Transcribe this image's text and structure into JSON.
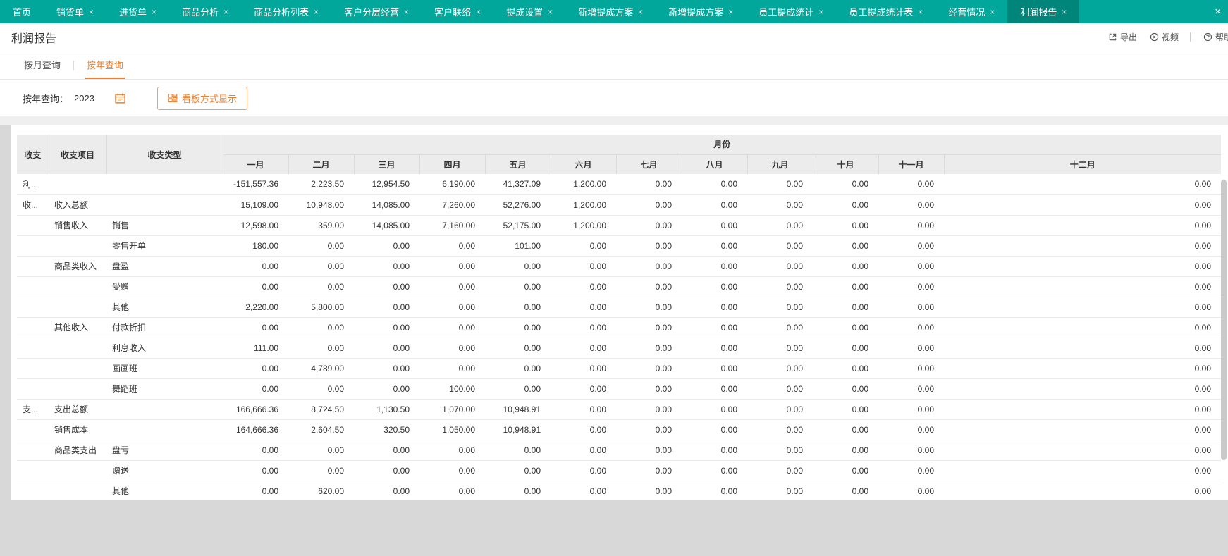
{
  "tab_bar": {
    "close_all": "×",
    "tabs": [
      {
        "label": "首页",
        "closable": false,
        "active": false
      },
      {
        "label": "销货单",
        "closable": true,
        "active": false
      },
      {
        "label": "进货单",
        "closable": true,
        "active": false
      },
      {
        "label": "商品分析",
        "closable": true,
        "active": false
      },
      {
        "label": "商品分析列表",
        "closable": true,
        "active": false
      },
      {
        "label": "客户分层经营",
        "closable": true,
        "active": false
      },
      {
        "label": "客户联络",
        "closable": true,
        "active": false
      },
      {
        "label": "提成设置",
        "closable": true,
        "active": false
      },
      {
        "label": "新增提成方案",
        "closable": true,
        "active": false
      },
      {
        "label": "新增提成方案",
        "closable": true,
        "active": false
      },
      {
        "label": "员工提成统计",
        "closable": true,
        "active": false
      },
      {
        "label": "员工提成统计表",
        "closable": true,
        "active": false
      },
      {
        "label": "经营情况",
        "closable": true,
        "active": false
      },
      {
        "label": "利润报告",
        "closable": true,
        "active": true
      }
    ]
  },
  "header": {
    "title": "利润报告",
    "actions": {
      "export": "导出",
      "video": "视频",
      "help": "帮助"
    }
  },
  "subtabs": [
    {
      "label": "按月查询",
      "active": false
    },
    {
      "label": "按年查询",
      "active": true
    }
  ],
  "filter": {
    "label": "按年查询：",
    "year": "2023",
    "board_button": "看板方式显示"
  },
  "colors": {
    "tabbar": "#01a79b",
    "tabbar_active": "#00857a",
    "accent_orange": "#ee7f2d"
  },
  "table": {
    "headers": {
      "col1": "收支",
      "col2": "收支项目",
      "col3": "收支类型",
      "month_group": "月份",
      "months": [
        "一月",
        "二月",
        "三月",
        "四月",
        "五月",
        "六月",
        "七月",
        "八月",
        "九月",
        "十月",
        "十一月",
        "十二月"
      ]
    },
    "rows": [
      {
        "a": "利...",
        "b": "",
        "c": "",
        "v": [
          "-151,557.36",
          "2,223.50",
          "12,954.50",
          "6,190.00",
          "41,327.09",
          "1,200.00",
          "0.00",
          "0.00",
          "0.00",
          "0.00",
          "0.00",
          "0.00"
        ]
      },
      {
        "a": "收...",
        "b": "收入总额",
        "c": "",
        "v": [
          "15,109.00",
          "10,948.00",
          "14,085.00",
          "7,260.00",
          "52,276.00",
          "1,200.00",
          "0.00",
          "0.00",
          "0.00",
          "0.00",
          "0.00",
          "0.00"
        ]
      },
      {
        "a": "",
        "b": "销售收入",
        "c": "销售",
        "v": [
          "12,598.00",
          "359.00",
          "14,085.00",
          "7,160.00",
          "52,175.00",
          "1,200.00",
          "0.00",
          "0.00",
          "0.00",
          "0.00",
          "0.00",
          "0.00"
        ]
      },
      {
        "a": "",
        "b": "",
        "c": "零售开单",
        "v": [
          "180.00",
          "0.00",
          "0.00",
          "0.00",
          "101.00",
          "0.00",
          "0.00",
          "0.00",
          "0.00",
          "0.00",
          "0.00",
          "0.00"
        ]
      },
      {
        "a": "",
        "b": "商品类收入",
        "c": "盘盈",
        "v": [
          "0.00",
          "0.00",
          "0.00",
          "0.00",
          "0.00",
          "0.00",
          "0.00",
          "0.00",
          "0.00",
          "0.00",
          "0.00",
          "0.00"
        ]
      },
      {
        "a": "",
        "b": "",
        "c": "受赠",
        "v": [
          "0.00",
          "0.00",
          "0.00",
          "0.00",
          "0.00",
          "0.00",
          "0.00",
          "0.00",
          "0.00",
          "0.00",
          "0.00",
          "0.00"
        ]
      },
      {
        "a": "",
        "b": "",
        "c": "其他",
        "v": [
          "2,220.00",
          "5,800.00",
          "0.00",
          "0.00",
          "0.00",
          "0.00",
          "0.00",
          "0.00",
          "0.00",
          "0.00",
          "0.00",
          "0.00"
        ]
      },
      {
        "a": "",
        "b": "其他收入",
        "c": "付款折扣",
        "v": [
          "0.00",
          "0.00",
          "0.00",
          "0.00",
          "0.00",
          "0.00",
          "0.00",
          "0.00",
          "0.00",
          "0.00",
          "0.00",
          "0.00"
        ]
      },
      {
        "a": "",
        "b": "",
        "c": "利息收入",
        "v": [
          "111.00",
          "0.00",
          "0.00",
          "0.00",
          "0.00",
          "0.00",
          "0.00",
          "0.00",
          "0.00",
          "0.00",
          "0.00",
          "0.00"
        ]
      },
      {
        "a": "",
        "b": "",
        "c": "画画班",
        "v": [
          "0.00",
          "4,789.00",
          "0.00",
          "0.00",
          "0.00",
          "0.00",
          "0.00",
          "0.00",
          "0.00",
          "0.00",
          "0.00",
          "0.00"
        ]
      },
      {
        "a": "",
        "b": "",
        "c": "舞蹈班",
        "v": [
          "0.00",
          "0.00",
          "0.00",
          "100.00",
          "0.00",
          "0.00",
          "0.00",
          "0.00",
          "0.00",
          "0.00",
          "0.00",
          "0.00"
        ]
      },
      {
        "a": "支...",
        "b": "支出总额",
        "c": "",
        "v": [
          "166,666.36",
          "8,724.50",
          "1,130.50",
          "1,070.00",
          "10,948.91",
          "0.00",
          "0.00",
          "0.00",
          "0.00",
          "0.00",
          "0.00",
          "0.00"
        ]
      },
      {
        "a": "",
        "b": "销售成本",
        "c": "",
        "v": [
          "164,666.36",
          "2,604.50",
          "320.50",
          "1,050.00",
          "10,948.91",
          "0.00",
          "0.00",
          "0.00",
          "0.00",
          "0.00",
          "0.00",
          "0.00"
        ]
      },
      {
        "a": "",
        "b": "商品类支出",
        "c": "盘亏",
        "v": [
          "0.00",
          "0.00",
          "0.00",
          "0.00",
          "0.00",
          "0.00",
          "0.00",
          "0.00",
          "0.00",
          "0.00",
          "0.00",
          "0.00"
        ]
      },
      {
        "a": "",
        "b": "",
        "c": "赠送",
        "v": [
          "0.00",
          "0.00",
          "0.00",
          "0.00",
          "0.00",
          "0.00",
          "0.00",
          "0.00",
          "0.00",
          "0.00",
          "0.00",
          "0.00"
        ]
      },
      {
        "a": "",
        "b": "",
        "c": "其他",
        "v": [
          "0.00",
          "620.00",
          "0.00",
          "0.00",
          "0.00",
          "0.00",
          "0.00",
          "0.00",
          "0.00",
          "0.00",
          "0.00",
          "0.00"
        ]
      }
    ]
  }
}
